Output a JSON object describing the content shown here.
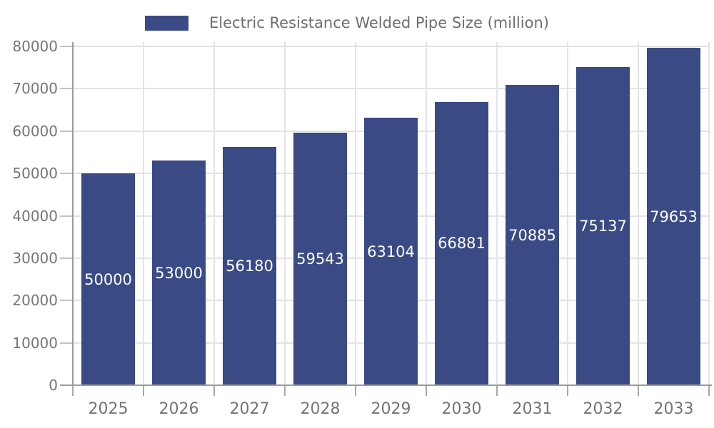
{
  "legend": {
    "label": "Electric Resistance Welded Pipe Size (million)"
  },
  "chart_data": {
    "type": "bar",
    "title": "",
    "categories": [
      "2025",
      "2026",
      "2027",
      "2028",
      "2029",
      "2030",
      "2031",
      "2032",
      "2033"
    ],
    "series": [
      {
        "name": "Electric Resistance Welded Pipe Size (million)",
        "values": [
          50000,
          53000,
          56180,
          59543,
          63104,
          66881,
          70885,
          75137,
          79653
        ]
      }
    ],
    "value_labels": [
      "50000",
      "53000",
      "56180",
      "59543",
      "63104",
      "66881",
      "70885",
      "75137",
      "79653"
    ],
    "xlabel": "",
    "ylabel": "",
    "ylim": [
      0,
      80000
    ],
    "yticks": [
      0,
      10000,
      20000,
      30000,
      40000,
      50000,
      60000,
      70000,
      80000
    ],
    "ytick_labels": [
      "0",
      "10000",
      "20000",
      "30000",
      "40000",
      "50000",
      "60000",
      "70000",
      "80000"
    ],
    "grid": true,
    "legend_position": "top",
    "colors": {
      "bar": "#3A4A85",
      "grid": "#E3E3E3",
      "axis_line": "#9C9C9C",
      "x_tick": "#A8A8A8",
      "y_tick": "#C2C2C2",
      "axis_text": "#757575",
      "legend_text": "#6E6E6E",
      "value_label_text": "#FFFFFF",
      "background": "#FFFFFF"
    }
  }
}
